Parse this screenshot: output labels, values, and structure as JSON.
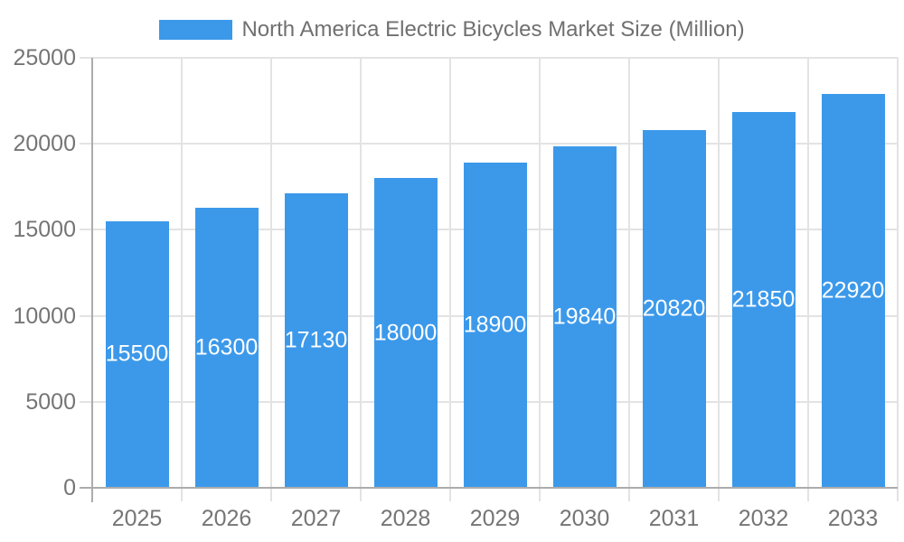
{
  "legend": {
    "label": "North America Electric Bicycles Market Size (Million)"
  },
  "chart_data": {
    "type": "bar",
    "title": "North America Electric Bicycles Market Size (Million)",
    "categories": [
      "2025",
      "2026",
      "2027",
      "2028",
      "2029",
      "2030",
      "2031",
      "2032",
      "2033"
    ],
    "values": [
      15500,
      16300,
      17130,
      18000,
      18900,
      19840,
      20820,
      21850,
      22920
    ],
    "xlabel": "",
    "ylabel": "",
    "ylim": [
      0,
      25000
    ],
    "yticks": [
      0,
      5000,
      10000,
      15000,
      20000,
      25000
    ],
    "grid": true,
    "legend_position": "top",
    "data_labels_position": "inside-center",
    "colors": {
      "bar": "#3C99EA",
      "grid": "#E3E3E3",
      "axis": "#ACACAC",
      "tick_label": "#757575",
      "legend_text": "#707070",
      "data_label": "#FFFFFF",
      "background": "#FFFFFF"
    }
  }
}
